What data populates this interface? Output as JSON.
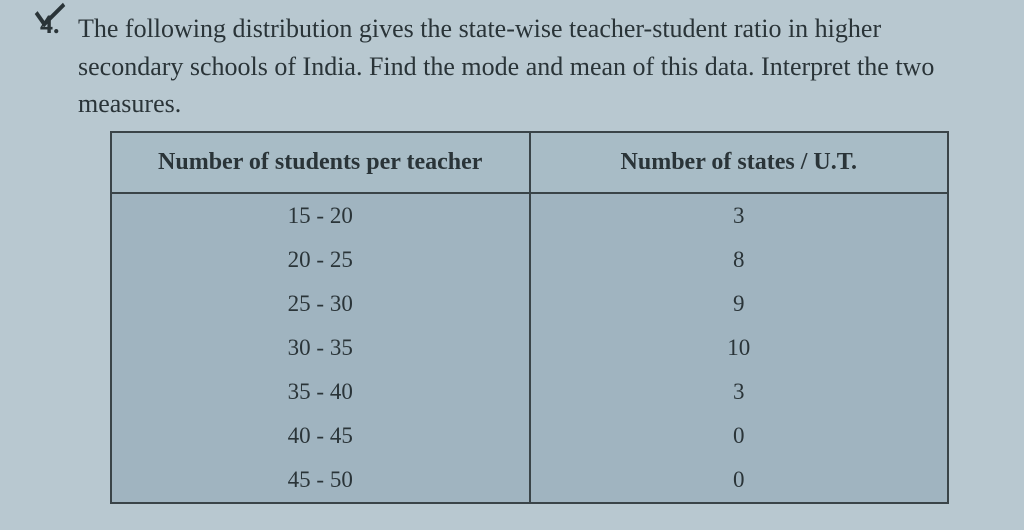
{
  "question": {
    "number": "4.",
    "text": "The following distribution gives the state-wise teacher-student ratio in higher secondary schools of India. Find the mode and mean of this data. Interpret the two measures."
  },
  "table": {
    "type": "table",
    "background_color": "#a0b4c0",
    "border_color": "#3a4448",
    "text_color": "#2a3438",
    "header_fontsize": 24,
    "cell_fontsize": 23,
    "columns": [
      {
        "label": "Number of students per teacher",
        "align": "center",
        "width": "50%"
      },
      {
        "label": "Number of states / U.T.",
        "align": "center",
        "width": "50%"
      }
    ],
    "rows": [
      [
        "15 - 20",
        "3"
      ],
      [
        "20 - 25",
        "8"
      ],
      [
        "25 - 30",
        "9"
      ],
      [
        "30 - 35",
        "10"
      ],
      [
        "35 - 40",
        "3"
      ],
      [
        "40 - 45",
        "0"
      ],
      [
        "45 - 50",
        "0"
      ]
    ]
  },
  "page_background": "#b8c8d0"
}
